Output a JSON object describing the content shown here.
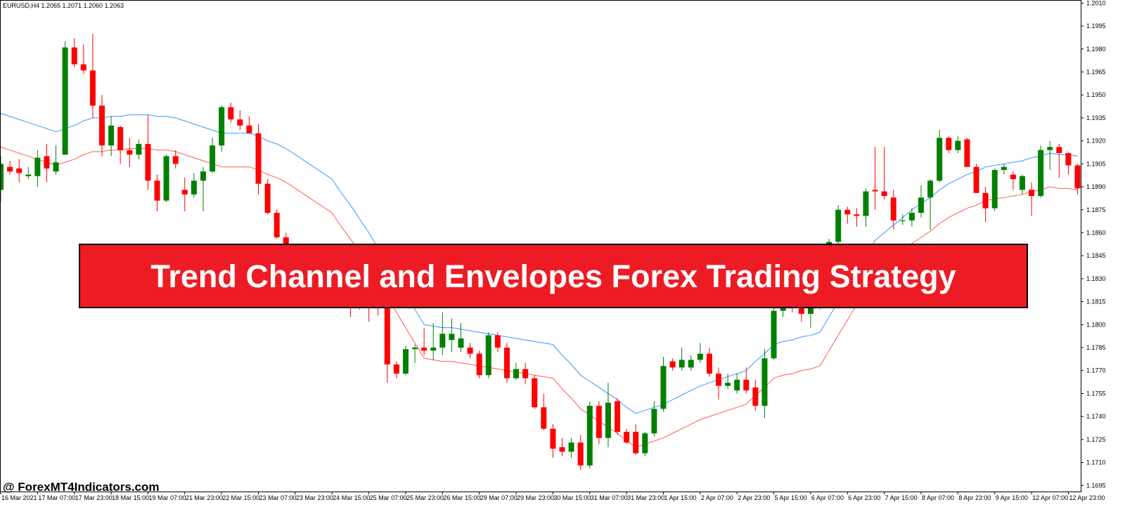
{
  "chart_data": {
    "type": "candlestick",
    "title": "Trend Channel and Envelopes Forex Trading Strategy",
    "symbol_info": "EURUSD,H4  1.2065 1.2071 1.2060 1.2063",
    "watermark": "@ ForexMT4Indicators.com",
    "up_color": "#008000",
    "down_color": "#ff0000",
    "categories": [
      "16 Mar 2021",
      null,
      null,
      null,
      "17 Mar 07:00",
      null,
      null,
      null,
      "17 Mar 23:00",
      null,
      null,
      null,
      "18 Mar 15:00",
      null,
      null,
      null,
      "19 Mar 07:00",
      null,
      null,
      null,
      "21 Mar 23:00",
      null,
      null,
      null,
      "22 Mar 15:00",
      null,
      null,
      null,
      "23 Mar 07:00",
      null,
      null,
      null,
      "23 Mar 23:00",
      null,
      null,
      null,
      "24 Mar 15:00",
      null,
      null,
      null,
      "25 Mar 07:00",
      null,
      null,
      null,
      "25 Mar 23:00",
      null,
      null,
      null,
      "26 Mar 15:00",
      null,
      null,
      null,
      "29 Mar 07:00",
      null,
      null,
      null,
      "29 Mar 23:00",
      null,
      null,
      null,
      "30 Mar 15:00",
      null,
      null,
      null,
      "31 Mar 07:00",
      null,
      null,
      null,
      "31 Mar 23:00",
      null,
      null,
      null,
      "1 Apr 15:00",
      null,
      null,
      null,
      "2 Apr 07:00",
      null,
      null,
      null,
      "2 Apr 23:00",
      null,
      null,
      null,
      "5 Apr 15:00",
      null,
      null,
      null,
      "6 Apr 07:00",
      null,
      null,
      null,
      "6 Apr 23:00",
      null,
      null,
      null,
      "7 Apr 15:00",
      null,
      null,
      null,
      "8 Apr 07:00",
      null,
      null,
      null,
      "8 Apr 23:00",
      null,
      null,
      null,
      "9 Apr 15:00",
      null,
      null,
      null,
      "12 Apr 07:00",
      null,
      null,
      null,
      "12 Apr 23:00",
      null
    ],
    "open": [
      1.1888,
      1.1903,
      1.1902,
      1.1897,
      1.1897,
      1.191,
      1.19,
      1.1911,
      1.1981,
      1.197,
      1.1966,
      1.1943,
      1.1917,
      1.1929,
      1.1914,
      1.1911,
      1.1918,
      1.1894,
      1.1881,
      1.191,
      1.1888,
      1.1885,
      1.1894,
      1.19,
      1.1917,
      1.1942,
      1.1934,
      1.193,
      1.1925,
      1.1892,
      1.1873,
      1.1857,
      1.1845,
      1.1838,
      1.1842,
      1.1832,
      1.1826,
      1.183,
      1.1818,
      1.1813,
      1.1819,
      1.1817,
      1.1811,
      1.1774,
      1.1768,
      1.1784,
      1.1785,
      1.1783,
      1.1785,
      1.179,
      1.1785,
      1.1785,
      1.1781,
      1.1767,
      1.1793,
      1.1785,
      1.1765,
      1.1771,
      1.1765,
      1.1746,
      1.1732,
      1.172,
      1.1717,
      1.1723,
      1.1708,
      1.1747,
      1.1726,
      1.175,
      1.173,
      1.173,
      1.1716,
      1.1729,
      1.1745,
      1.1776,
      1.1772,
      1.1772,
      1.1777,
      1.1781,
      1.1768,
      1.176,
      1.1757,
      1.1764,
      1.1759,
      1.1747,
      1.1778,
      1.1809,
      1.1816,
      1.1815,
      1.1807,
      1.1813,
      1.1822,
      1.1854,
      1.1875,
      1.1872,
      1.1871,
      1.1888,
      1.1887,
      1.1883,
      1.1868,
      1.1868,
      1.1873,
      1.1883,
      1.1894,
      1.1922,
      1.1914,
      1.1921,
      1.1903,
      1.1886,
      1.1876,
      1.1901,
      1.1898,
      1.1888,
      1.1888,
      1.1884,
      1.1914,
      1.1916,
      1.1912,
      1.1904
    ],
    "high": [
      1.191,
      1.1907,
      1.1908,
      1.1903,
      1.1914,
      1.1918,
      1.1917,
      1.1985,
      1.1987,
      1.1983,
      1.199,
      1.195,
      1.1936,
      1.193,
      1.1922,
      1.1921,
      1.1937,
      1.1898,
      1.1911,
      1.1914,
      1.1896,
      1.1899,
      1.1903,
      1.1922,
      1.1943,
      1.1945,
      1.194,
      1.1936,
      1.1931,
      1.1895,
      1.1875,
      1.186,
      1.1849,
      1.1845,
      1.1846,
      1.1838,
      1.1834,
      1.1833,
      1.1824,
      1.1822,
      1.1823,
      1.1822,
      1.1812,
      1.1776,
      1.1786,
      1.1787,
      1.1798,
      1.1801,
      1.1808,
      1.1804,
      1.1801,
      1.1788,
      1.1783,
      1.1795,
      1.1795,
      1.1788,
      1.1775,
      1.1775,
      1.1767,
      1.1755,
      1.1735,
      1.1726,
      1.1726,
      1.1728,
      1.175,
      1.175,
      1.1762,
      1.1752,
      1.1732,
      1.1735,
      1.173,
      1.175,
      1.1779,
      1.1778,
      1.1785,
      1.178,
      1.1788,
      1.1785,
      1.1772,
      1.1768,
      1.1768,
      1.1772,
      1.1764,
      1.1784,
      1.1815,
      1.182,
      1.1822,
      1.182,
      1.1818,
      1.1825,
      1.1856,
      1.1878,
      1.1877,
      1.1876,
      1.1889,
      1.1916,
      1.1916,
      1.1888,
      1.1872,
      1.1876,
      1.1891,
      1.1895,
      1.1927,
      1.1923,
      1.1923,
      1.1922,
      1.1905,
      1.189,
      1.1902,
      1.1905,
      1.19,
      1.1898,
      1.1893,
      1.1917,
      1.192,
      1.1918,
      1.1913,
      1.1905
    ],
    "low": [
      1.188,
      1.1898,
      1.1893,
      1.1895,
      1.189,
      1.1893,
      1.1898,
      1.1911,
      1.1968,
      1.1964,
      1.1935,
      1.191,
      1.191,
      1.1905,
      1.1903,
      1.1908,
      1.1888,
      1.1874,
      1.188,
      1.1902,
      1.1874,
      1.1883,
      1.1874,
      1.1899,
      1.1913,
      1.1932,
      1.1927,
      1.1925,
      1.1885,
      1.1872,
      1.1856,
      1.184,
      1.1836,
      1.183,
      1.1828,
      1.1822,
      1.182,
      1.1815,
      1.1805,
      1.181,
      1.1802,
      1.1806,
      1.1762,
      1.1765,
      1.1767,
      1.1775,
      1.178,
      1.1777,
      1.178,
      1.1782,
      1.1782,
      1.1778,
      1.1765,
      1.1765,
      1.1782,
      1.1762,
      1.1764,
      1.1761,
      1.1745,
      1.1731,
      1.1713,
      1.1714,
      1.1713,
      1.1705,
      1.1706,
      1.1722,
      1.172,
      1.1728,
      1.1722,
      1.1715,
      1.1714,
      1.1727,
      1.1743,
      1.177,
      1.177,
      1.177,
      1.1775,
      1.1766,
      1.1751,
      1.1758,
      1.1755,
      1.1755,
      1.1744,
      1.1739,
      1.1777,
      1.1805,
      1.1808,
      1.1802,
      1.1798,
      1.181,
      1.1818,
      1.185,
      1.1866,
      1.1864,
      1.1864,
      1.1875,
      1.1882,
      1.1862,
      1.1865,
      1.1864,
      1.187,
      1.1862,
      1.1893,
      1.1912,
      1.1912,
      1.1903,
      1.1886,
      1.1867,
      1.1874,
      1.1898,
      1.1888,
      1.1885,
      1.1871,
      1.1883,
      1.1901,
      1.1896,
      1.1898,
      1.1885
    ],
    "close": [
      1.1905,
      1.19,
      1.1899,
      1.1898,
      1.1909,
      1.1902,
      1.1906,
      1.1981,
      1.197,
      1.1966,
      1.1943,
      1.1917,
      1.193,
      1.1914,
      1.1911,
      1.1918,
      1.1894,
      1.1881,
      1.191,
      1.1905,
      1.1885,
      1.1894,
      1.19,
      1.1917,
      1.1942,
      1.1934,
      1.193,
      1.1925,
      1.1892,
      1.1873,
      1.1857,
      1.1845,
      1.1838,
      1.1842,
      1.1832,
      1.1826,
      1.183,
      1.1818,
      1.1813,
      1.1819,
      1.1815,
      1.1811,
      1.1774,
      1.1768,
      1.1784,
      1.1785,
      1.1783,
      1.1785,
      1.1794,
      1.1794,
      1.1791,
      1.1781,
      1.1767,
      1.1793,
      1.1785,
      1.1765,
      1.1771,
      1.1765,
      1.1746,
      1.1732,
      1.1719,
      1.1717,
      1.1723,
      1.1708,
      1.1747,
      1.1726,
      1.1749,
      1.173,
      1.1723,
      1.1716,
      1.1729,
      1.1745,
      1.1773,
      1.1772,
      1.1777,
      1.1777,
      1.1781,
      1.1768,
      1.176,
      1.1762,
      1.1764,
      1.1757,
      1.1747,
      1.1778,
      1.1809,
      1.1816,
      1.1812,
      1.1807,
      1.1813,
      1.1822,
      1.1854,
      1.1875,
      1.1872,
      1.1871,
      1.1887,
      1.1887,
      1.1884,
      1.1868,
      1.1868,
      1.1873,
      1.1883,
      1.1894,
      1.1922,
      1.1914,
      1.192,
      1.1903,
      1.1886,
      1.1876,
      1.1901,
      1.1903,
      1.1895,
      1.1897,
      1.1884,
      1.1914,
      1.1916,
      1.1912,
      1.1904,
      1.1889
    ],
    "lines": [
      {
        "color": "#3399ff",
        "values": [
          1.1938,
          1.1936,
          1.1934,
          1.1932,
          1.193,
          1.1928,
          1.1926,
          1.1928,
          1.193,
          1.1933,
          1.1935,
          1.1935,
          1.1936,
          1.1936,
          1.1937,
          1.1937,
          1.1937,
          1.1936,
          1.1936,
          1.1935,
          1.1933,
          1.1931,
          1.1929,
          1.1927,
          1.1925,
          1.1925,
          1.1925,
          1.1925,
          1.1923,
          1.192,
          1.1918,
          1.1915,
          1.1911,
          1.1907,
          1.1903,
          1.1899,
          1.1895,
          1.1886,
          1.1878,
          1.1869,
          1.186,
          1.185,
          1.184,
          1.183,
          1.182,
          1.181,
          1.18,
          1.1799,
          1.1798,
          1.1798,
          1.1797,
          1.1796,
          1.1795,
          1.1794,
          1.1793,
          1.1792,
          1.1791,
          1.179,
          1.1789,
          1.1788,
          1.1787,
          1.178,
          1.1774,
          1.1767,
          1.1763,
          1.1759,
          1.1755,
          1.1751,
          1.1746,
          1.1742,
          1.1744,
          1.1746,
          1.1748,
          1.1751,
          1.1754,
          1.1757,
          1.176,
          1.1762,
          1.1764,
          1.1766,
          1.1768,
          1.177,
          1.1776,
          1.1781,
          1.1787,
          1.1789,
          1.179,
          1.1792,
          1.1793,
          1.1795,
          1.1805,
          1.1815,
          1.1825,
          1.1835,
          1.1845,
          1.1855,
          1.186,
          1.1865,
          1.187,
          1.1875,
          1.1879,
          1.1883,
          1.1888,
          1.1892,
          1.1895,
          1.1898,
          1.19,
          1.1903,
          1.1904,
          1.1905,
          1.1906,
          1.1907,
          1.1909,
          1.191,
          1.1912,
          1.1911,
          1.1911,
          1.191
        ]
      },
      {
        "color": "#ff5a4a",
        "values": [
          1.1916,
          1.1914,
          1.1912,
          1.191,
          1.1908,
          1.1906,
          1.1904,
          1.1906,
          1.1908,
          1.1911,
          1.1913,
          1.1913,
          1.1914,
          1.1914,
          1.1915,
          1.1915,
          1.1915,
          1.1914,
          1.1914,
          1.1913,
          1.1911,
          1.1909,
          1.1907,
          1.1905,
          1.1903,
          1.1903,
          1.1903,
          1.1903,
          1.1901,
          1.1898,
          1.1896,
          1.1893,
          1.1889,
          1.1885,
          1.1881,
          1.1877,
          1.1873,
          1.1864,
          1.1856,
          1.1847,
          1.1838,
          1.1828,
          1.1818,
          1.1808,
          1.1798,
          1.1788,
          1.1778,
          1.1777,
          1.1776,
          1.1776,
          1.1775,
          1.1774,
          1.1773,
          1.1772,
          1.1771,
          1.177,
          1.1769,
          1.1768,
          1.1767,
          1.1766,
          1.1765,
          1.1758,
          1.1752,
          1.1745,
          1.1741,
          1.1737,
          1.1733,
          1.1729,
          1.1724,
          1.172,
          1.1722,
          1.1724,
          1.1726,
          1.1729,
          1.1732,
          1.1735,
          1.1738,
          1.174,
          1.1742,
          1.1744,
          1.1746,
          1.1748,
          1.1754,
          1.1759,
          1.1765,
          1.1767,
          1.1768,
          1.177,
          1.1771,
          1.1773,
          1.1783,
          1.1793,
          1.1803,
          1.1813,
          1.1823,
          1.1833,
          1.1838,
          1.1843,
          1.1848,
          1.1853,
          1.1857,
          1.1861,
          1.1866,
          1.187,
          1.1873,
          1.1876,
          1.1878,
          1.1881,
          1.1882,
          1.1883,
          1.1884,
          1.1885,
          1.1887,
          1.1888,
          1.189,
          1.1889,
          1.1889,
          1.1888
        ]
      }
    ],
    "ylim": [
      1.1691,
      1.2012
    ],
    "yticks": [
      {
        "value": 1.201,
        "label": "1.2010"
      },
      1.1995,
      {
        "value": 1.198,
        "label": "1.1980"
      },
      1.1965,
      {
        "value": 1.195,
        "label": "1.1950"
      },
      1.1935,
      {
        "value": 1.192,
        "label": "1.1920"
      },
      1.1905,
      {
        "value": 1.189,
        "label": "1.1890"
      },
      1.1875,
      {
        "value": 1.186,
        "label": "1.1860"
      },
      1.1845,
      {
        "value": 1.183,
        "label": "1.1830"
      },
      1.1815,
      {
        "value": 1.18,
        "label": "1.1800"
      },
      1.1785,
      {
        "value": 1.177,
        "label": "1.1770"
      },
      1.1755,
      {
        "value": 1.174,
        "label": "1.1740"
      },
      1.1725,
      {
        "value": 1.171,
        "label": "1.1710"
      },
      1.1695
    ],
    "grid": false
  }
}
